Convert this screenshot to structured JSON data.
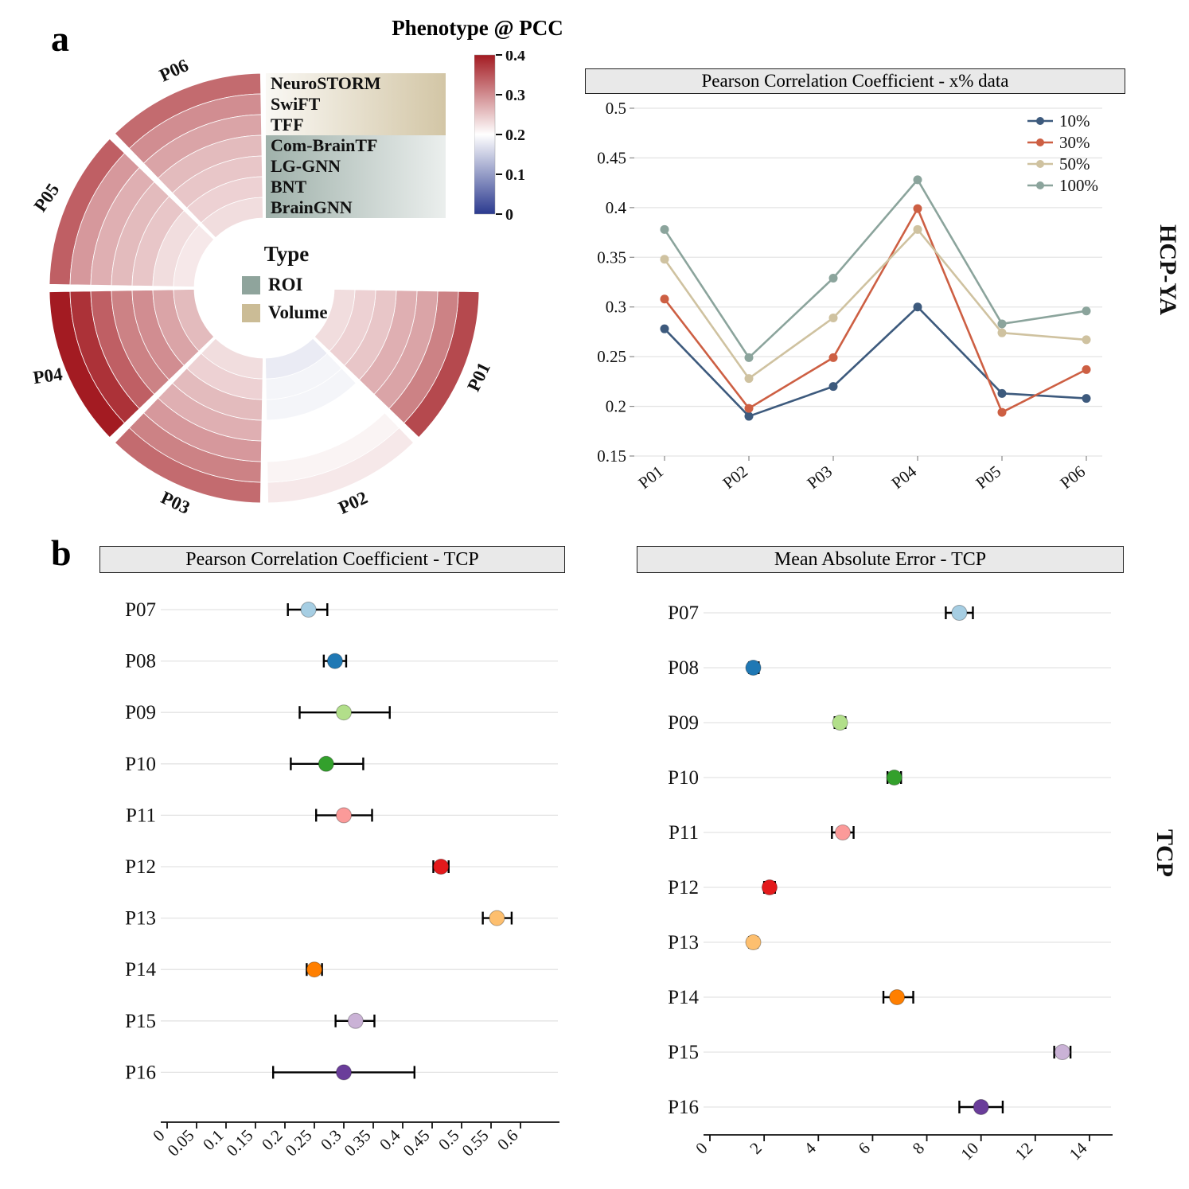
{
  "figure": {
    "panel_a_label": "a",
    "panel_b_label": "b",
    "dataset_label_top": "HCP-YA",
    "dataset_label_bottom": "TCP"
  },
  "chart_data": [
    {
      "id": "phenotype_polar_heatmap",
      "type": "heatmap",
      "title": "Phenotype @ PCC",
      "layout_hint": "polar annular heatmap; top-right quadrant empty and used for ring labels; 6 sectors x 7 rings",
      "sectors": [
        "P01",
        "P02",
        "P03",
        "P04",
        "P05",
        "P06"
      ],
      "rings_outer_to_inner": [
        "NeuroSTORM",
        "SwiFT",
        "TFF",
        "Com-BrainTF",
        "LG-GNN",
        "BNT",
        "BrainGNN"
      ],
      "ring_model_type": [
        "Volume",
        "Volume",
        "Volume",
        "ROI",
        "ROI",
        "ROI",
        "ROI"
      ],
      "values_by_sector": {
        "P01": [
          0.36,
          0.31,
          0.28,
          0.27,
          0.25,
          0.24,
          0.23
        ],
        "P02": [
          0.22,
          0.21,
          0.2,
          0.2,
          0.19,
          0.19,
          0.18
        ],
        "P03": [
          0.33,
          0.31,
          0.29,
          0.27,
          0.26,
          0.24,
          0.23
        ],
        "P04": [
          0.4,
          0.38,
          0.34,
          0.31,
          0.3,
          0.28,
          0.26
        ],
        "P05": [
          0.34,
          0.29,
          0.27,
          0.26,
          0.25,
          0.23,
          0.22
        ],
        "P06": [
          0.33,
          0.3,
          0.28,
          0.26,
          0.25,
          0.24,
          0.23
        ]
      },
      "colorbar": {
        "min": 0,
        "max": 0.4,
        "mid": 0.2,
        "ticks": [
          "0.4",
          "0.3",
          "0.2",
          "0.1",
          "0"
        ],
        "color_high": "#a31b22",
        "color_mid": "#ffffff",
        "color_low": "#2b3a8f"
      },
      "type_legend": {
        "title": "Type",
        "items": [
          {
            "label": "ROI",
            "color": "#8fa49c"
          },
          {
            "label": "Volume",
            "color": "#cbbc96"
          }
        ]
      }
    },
    {
      "id": "hcp_ya_line_chart",
      "type": "line",
      "title": "Pearson Correlation Coefficient - x% data",
      "x": [
        "P01",
        "P02",
        "P03",
        "P04",
        "P05",
        "P06"
      ],
      "ylim": [
        0.15,
        0.5
      ],
      "yticks": [
        "0.5",
        "0.45",
        "0.4",
        "0.35",
        "0.3",
        "0.25",
        "0.2",
        "0.15"
      ],
      "grid": true,
      "legend_position": "top-right",
      "series": [
        {
          "name": "10%",
          "color": "#3d5a7d",
          "values": [
            0.278,
            0.19,
            0.22,
            0.3,
            0.213,
            0.208
          ]
        },
        {
          "name": "30%",
          "color": "#cd5f43",
          "values": [
            0.308,
            0.198,
            0.249,
            0.399,
            0.194,
            0.237
          ]
        },
        {
          "name": "50%",
          "color": "#cfc2a0",
          "values": [
            0.348,
            0.228,
            0.289,
            0.378,
            0.274,
            0.267
          ]
        },
        {
          "name": "100%",
          "color": "#8ba49c",
          "values": [
            0.378,
            0.249,
            0.329,
            0.428,
            0.283,
            0.296
          ]
        }
      ]
    },
    {
      "id": "tcp_pcc_dot_plot",
      "type": "scatter",
      "title": "Pearson Correlation Coefficient - TCP",
      "orientation": "horizontal-error-bars",
      "categories": [
        "P07",
        "P08",
        "P09",
        "P10",
        "P11",
        "P12",
        "P13",
        "P14",
        "P15",
        "P16"
      ],
      "xlim": [
        0,
        0.65
      ],
      "xticks": [
        "0",
        "0.05",
        "0.1",
        "0.15",
        "0.2",
        "0.25",
        "0.3",
        "0.35",
        "0.4",
        "0.45",
        "0.5",
        "0.55",
        "0.6"
      ],
      "points": [
        {
          "category": "P07",
          "mean": 0.24,
          "lo": 0.205,
          "hi": 0.272,
          "color": "#a6cee3"
        },
        {
          "category": "P08",
          "mean": 0.285,
          "lo": 0.266,
          "hi": 0.304,
          "color": "#1f78b4"
        },
        {
          "category": "P09",
          "mean": 0.3,
          "lo": 0.225,
          "hi": 0.378,
          "color": "#b2df8a"
        },
        {
          "category": "P10",
          "mean": 0.27,
          "lo": 0.21,
          "hi": 0.333,
          "color": "#33a02c"
        },
        {
          "category": "P11",
          "mean": 0.3,
          "lo": 0.253,
          "hi": 0.348,
          "color": "#fb9a99"
        },
        {
          "category": "P12",
          "mean": 0.465,
          "lo": 0.452,
          "hi": 0.478,
          "color": "#e31a1c"
        },
        {
          "category": "P13",
          "mean": 0.56,
          "lo": 0.536,
          "hi": 0.585,
          "color": "#fdbf6f"
        },
        {
          "category": "P14",
          "mean": 0.25,
          "lo": 0.237,
          "hi": 0.263,
          "color": "#ff7f00"
        },
        {
          "category": "P15",
          "mean": 0.32,
          "lo": 0.286,
          "hi": 0.352,
          "color": "#cab2d6"
        },
        {
          "category": "P16",
          "mean": 0.3,
          "lo": 0.18,
          "hi": 0.42,
          "color": "#6a3d9a"
        }
      ]
    },
    {
      "id": "tcp_mae_dot_plot",
      "type": "scatter",
      "title": "Mean Absolute Error - TCP",
      "orientation": "horizontal-error-bars",
      "categories": [
        "P07",
        "P08",
        "P09",
        "P10",
        "P11",
        "P12",
        "P13",
        "P14",
        "P15",
        "P16"
      ],
      "xlim": [
        0,
        14.5
      ],
      "xticks": [
        "0",
        "2",
        "4",
        "6",
        "8",
        "10",
        "12",
        "14"
      ],
      "points": [
        {
          "category": "P07",
          "mean": 9.2,
          "lo": 8.7,
          "hi": 9.7,
          "color": "#a6cee3"
        },
        {
          "category": "P08",
          "mean": 1.6,
          "lo": 1.45,
          "hi": 1.8,
          "color": "#1f78b4"
        },
        {
          "category": "P09",
          "mean": 4.8,
          "lo": 4.6,
          "hi": 5.0,
          "color": "#b2df8a"
        },
        {
          "category": "P10",
          "mean": 6.8,
          "lo": 6.55,
          "hi": 7.05,
          "color": "#33a02c"
        },
        {
          "category": "P11",
          "mean": 4.9,
          "lo": 4.5,
          "hi": 5.3,
          "color": "#fb9a99"
        },
        {
          "category": "P12",
          "mean": 2.2,
          "lo": 2.0,
          "hi": 2.4,
          "color": "#e31a1c"
        },
        {
          "category": "P13",
          "mean": 1.6,
          "lo": 1.45,
          "hi": 1.75,
          "color": "#fdbf6f"
        },
        {
          "category": "P14",
          "mean": 6.9,
          "lo": 6.4,
          "hi": 7.5,
          "color": "#ff7f00"
        },
        {
          "category": "P15",
          "mean": 13.0,
          "lo": 12.7,
          "hi": 13.3,
          "color": "#cab2d6"
        },
        {
          "category": "P16",
          "mean": 10.0,
          "lo": 9.2,
          "hi": 10.8,
          "color": "#6a3d9a"
        }
      ]
    }
  ]
}
